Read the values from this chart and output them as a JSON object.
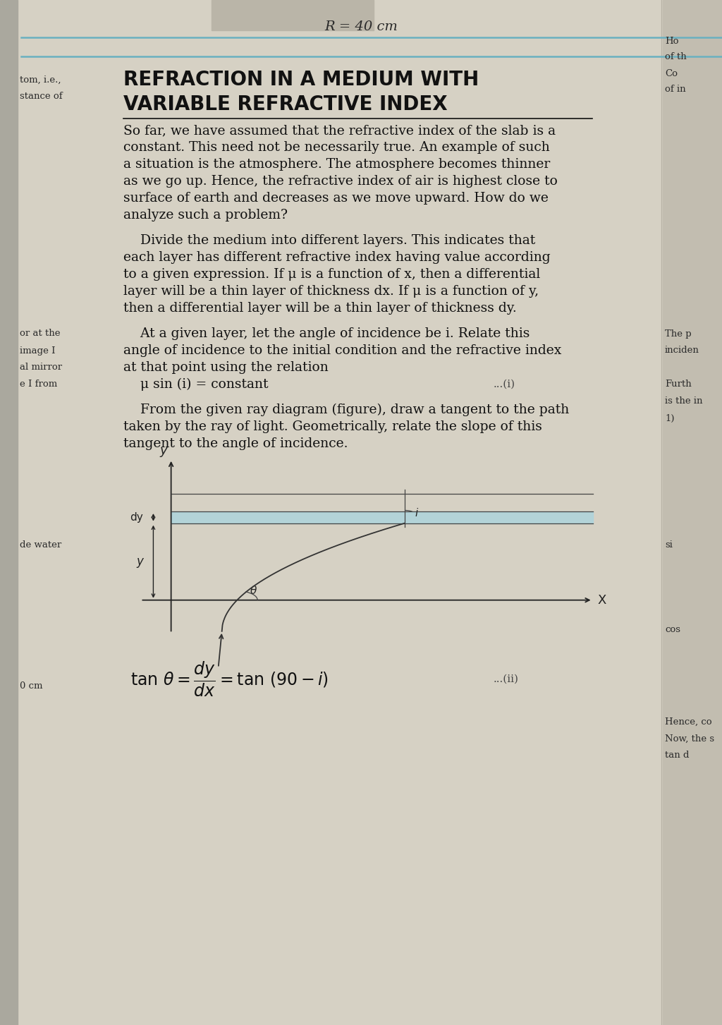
{
  "page_bg": "#ccc8be",
  "content_bg": "#d6d1c4",
  "text_area_bg": "#dedad2",
  "title_line": "R = 40 cm",
  "section_title_line1": "REFRACTION IN A MEDIUM WITH",
  "section_title_line2": "VARIABLE REFRACTIVE INDEX",
  "separator_color": "#6ab0c0",
  "diagram": {
    "layer_color": "#a8d4e0",
    "layer_alpha": 0.75
  }
}
